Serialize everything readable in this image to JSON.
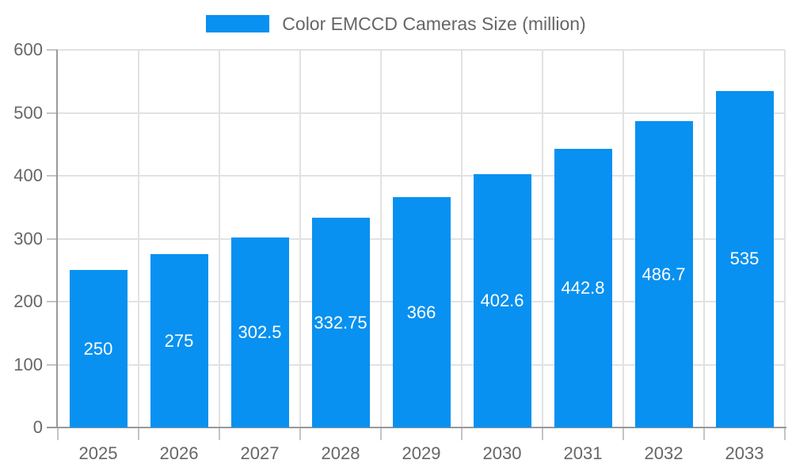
{
  "legend": {
    "label": "Color EMCCD Cameras Size (million)"
  },
  "chart_data": {
    "type": "bar",
    "title": "Color EMCCD Cameras Size (million)",
    "xlabel": "",
    "ylabel": "",
    "categories": [
      "2025",
      "2026",
      "2027",
      "2028",
      "2029",
      "2030",
      "2031",
      "2032",
      "2033"
    ],
    "values": [
      250,
      275,
      302.5,
      332.75,
      366,
      402.6,
      442.8,
      486.7,
      535
    ],
    "value_labels": [
      "250",
      "275",
      "302.5",
      "332.75",
      "366",
      "402.6",
      "442.8",
      "486.7",
      "535"
    ],
    "ylim": [
      0,
      600
    ],
    "y_ticks": [
      0,
      100,
      200,
      300,
      400,
      500,
      600
    ],
    "y_tick_labels": [
      "0",
      "100",
      "200",
      "300",
      "400",
      "500",
      "600"
    ],
    "grid": true,
    "legend_position": "top",
    "colors": {
      "bar": "#0891F0",
      "bar_value_text": "#ffffff",
      "axis_text": "#666666",
      "grid_line": "#e2e2e2",
      "axis_line": "#999999",
      "tick_line": "#c4c4c4",
      "background": "#ffffff"
    }
  }
}
